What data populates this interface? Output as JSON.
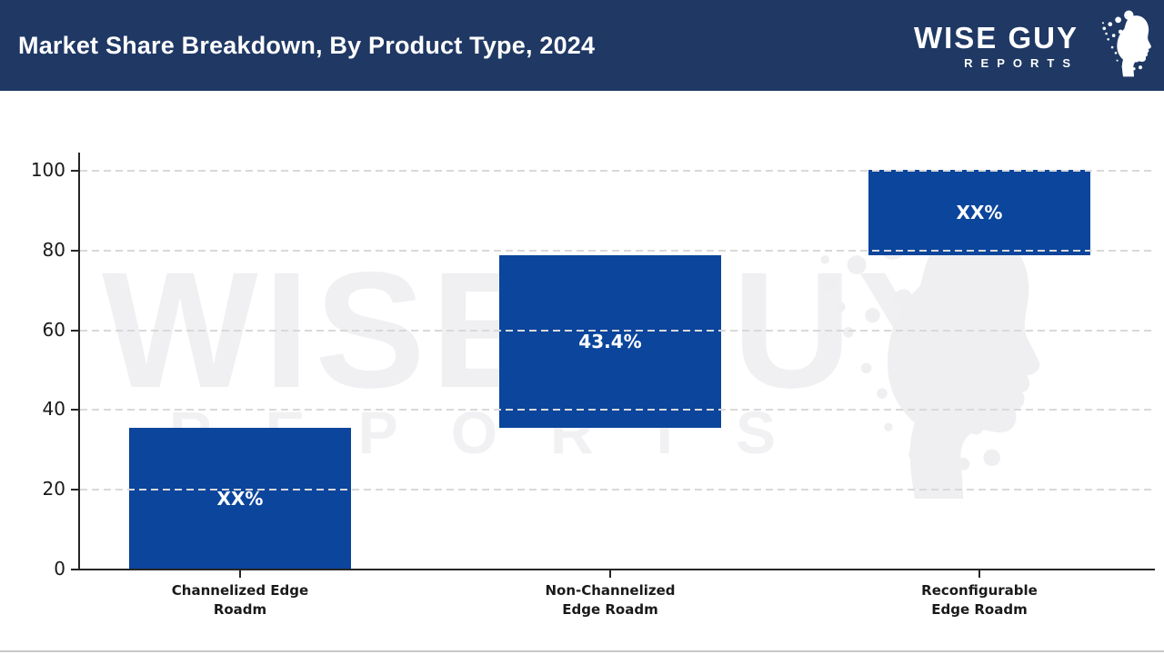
{
  "header": {
    "title": "Market Share Breakdown, By Product Type, 2024",
    "logo": {
      "name": "WISE GUY",
      "tagline": "REPORTS",
      "icon": "dotted-head-icon"
    }
  },
  "watermark": {
    "name": "WISE GUY",
    "tagline": "REPORTS",
    "icon": "dotted-head-icon"
  },
  "colors": {
    "header_bg": "#1f3864",
    "bar": "#0b459c",
    "bar_label": "#ffffff",
    "grid": "#d9d9d9",
    "axis": "#262626",
    "tick_label": "#1a1a1a",
    "watermark": "#f0f0f2",
    "footer_line": "#c9c9c9"
  },
  "chart_data": {
    "type": "bar",
    "subtype": "waterfall",
    "title": "Market Share Breakdown, By Product Type, 2024",
    "categories": [
      "Channelized Edge|Roadm",
      "Non-Channelized|Edge Roadm",
      "Reconfigurable|Edge Roadm"
    ],
    "segments": [
      {
        "category": "Channelized Edge Roadm",
        "start": 0,
        "end": 35.2,
        "value": 35.2,
        "label": "XX%"
      },
      {
        "category": "Non-Channelized Edge Roadm",
        "start": 35.2,
        "end": 78.6,
        "value": 43.4,
        "label": "43.4%"
      },
      {
        "category": "Reconfigurable Edge Roadm",
        "start": 78.6,
        "end": 100,
        "value": 21.4,
        "label": "XX%"
      }
    ],
    "yticks": [
      0,
      20,
      40,
      60,
      80,
      100
    ],
    "ylim": [
      0,
      100
    ],
    "xlabel": "",
    "ylabel": "",
    "grid": "horizontal-dashed",
    "legend": "none"
  }
}
